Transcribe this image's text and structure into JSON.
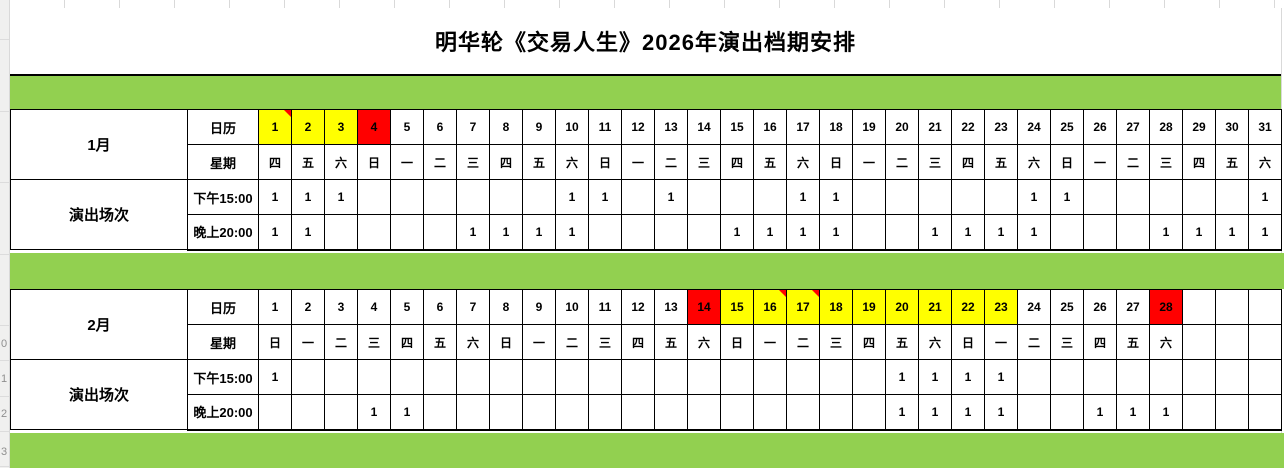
{
  "title": "明华轮《交易人生》2026年演出档期安排",
  "colors": {
    "band_green": "#92d050",
    "highlight_yellow": "#ffff00",
    "highlight_red": "#ff0000"
  },
  "labels": {
    "calendar": "日历",
    "weekday": "星期",
    "sessions": "演出场次",
    "afternoon": "下午15:00",
    "evening": "晚上20:00"
  },
  "gutter": {
    "row_numbers": [
      "0",
      "1",
      "2",
      "3"
    ]
  },
  "months": [
    {
      "name": "1月",
      "days": [
        {
          "date": "1",
          "week": "四",
          "bg": "yellow",
          "note": true,
          "pm": "1",
          "ev": "1"
        },
        {
          "date": "2",
          "week": "五",
          "bg": "yellow",
          "pm": "1",
          "ev": "1"
        },
        {
          "date": "3",
          "week": "六",
          "bg": "yellow",
          "pm": "1",
          "ev": ""
        },
        {
          "date": "4",
          "week": "日",
          "bg": "red",
          "pm": "",
          "ev": ""
        },
        {
          "date": "5",
          "week": "一",
          "pm": "",
          "ev": ""
        },
        {
          "date": "6",
          "week": "二",
          "pm": "",
          "ev": ""
        },
        {
          "date": "7",
          "week": "三",
          "pm": "",
          "ev": "1"
        },
        {
          "date": "8",
          "week": "四",
          "pm": "",
          "ev": "1"
        },
        {
          "date": "9",
          "week": "五",
          "pm": "",
          "ev": "1"
        },
        {
          "date": "10",
          "week": "六",
          "pm": "1",
          "ev": "1"
        },
        {
          "date": "11",
          "week": "日",
          "pm": "1",
          "ev": ""
        },
        {
          "date": "12",
          "week": "一",
          "pm": "",
          "ev": ""
        },
        {
          "date": "13",
          "week": "二",
          "pm": "1",
          "ev": ""
        },
        {
          "date": "14",
          "week": "三",
          "pm": "",
          "ev": ""
        },
        {
          "date": "15",
          "week": "四",
          "pm": "",
          "ev": "1"
        },
        {
          "date": "16",
          "week": "五",
          "pm": "",
          "ev": "1"
        },
        {
          "date": "17",
          "week": "六",
          "pm": "1",
          "ev": "1"
        },
        {
          "date": "18",
          "week": "日",
          "pm": "1",
          "ev": "1"
        },
        {
          "date": "19",
          "week": "一",
          "pm": "",
          "ev": ""
        },
        {
          "date": "20",
          "week": "二",
          "pm": "",
          "ev": ""
        },
        {
          "date": "21",
          "week": "三",
          "pm": "",
          "ev": "1"
        },
        {
          "date": "22",
          "week": "四",
          "pm": "",
          "ev": "1"
        },
        {
          "date": "23",
          "week": "五",
          "pm": "",
          "ev": "1"
        },
        {
          "date": "24",
          "week": "六",
          "pm": "1",
          "ev": "1"
        },
        {
          "date": "25",
          "week": "日",
          "pm": "1",
          "ev": ""
        },
        {
          "date": "26",
          "week": "一",
          "pm": "",
          "ev": ""
        },
        {
          "date": "27",
          "week": "二",
          "pm": "",
          "ev": ""
        },
        {
          "date": "28",
          "week": "三",
          "pm": "",
          "ev": "1"
        },
        {
          "date": "29",
          "week": "四",
          "pm": "",
          "ev": "1"
        },
        {
          "date": "30",
          "week": "五",
          "pm": "",
          "ev": "1"
        },
        {
          "date": "31",
          "week": "六",
          "pm": "1",
          "ev": "1"
        }
      ]
    },
    {
      "name": "2月",
      "days": [
        {
          "date": "1",
          "week": "日",
          "pm": "1",
          "ev": ""
        },
        {
          "date": "2",
          "week": "一",
          "pm": "",
          "ev": ""
        },
        {
          "date": "3",
          "week": "二",
          "pm": "",
          "ev": ""
        },
        {
          "date": "4",
          "week": "三",
          "pm": "",
          "ev": "1"
        },
        {
          "date": "5",
          "week": "四",
          "pm": "",
          "ev": "1"
        },
        {
          "date": "6",
          "week": "五",
          "pm": "",
          "ev": ""
        },
        {
          "date": "7",
          "week": "六",
          "pm": "",
          "ev": ""
        },
        {
          "date": "8",
          "week": "日",
          "pm": "",
          "ev": ""
        },
        {
          "date": "9",
          "week": "一",
          "pm": "",
          "ev": ""
        },
        {
          "date": "10",
          "week": "二",
          "pm": "",
          "ev": ""
        },
        {
          "date": "11",
          "week": "三",
          "pm": "",
          "ev": ""
        },
        {
          "date": "12",
          "week": "四",
          "pm": "",
          "ev": ""
        },
        {
          "date": "13",
          "week": "五",
          "pm": "",
          "ev": ""
        },
        {
          "date": "14",
          "week": "六",
          "bg": "red",
          "pm": "",
          "ev": ""
        },
        {
          "date": "15",
          "week": "日",
          "bg": "yellow",
          "pm": "",
          "ev": ""
        },
        {
          "date": "16",
          "week": "一",
          "bg": "yellow",
          "note": true,
          "pm": "",
          "ev": ""
        },
        {
          "date": "17",
          "week": "二",
          "bg": "yellow",
          "note": true,
          "pm": "",
          "ev": ""
        },
        {
          "date": "18",
          "week": "三",
          "bg": "yellow",
          "pm": "",
          "ev": ""
        },
        {
          "date": "19",
          "week": "四",
          "bg": "yellow",
          "pm": "",
          "ev": ""
        },
        {
          "date": "20",
          "week": "五",
          "bg": "yellow",
          "pm": "1",
          "ev": "1"
        },
        {
          "date": "21",
          "week": "六",
          "bg": "yellow",
          "pm": "1",
          "ev": "1"
        },
        {
          "date": "22",
          "week": "日",
          "bg": "yellow",
          "pm": "1",
          "ev": "1"
        },
        {
          "date": "23",
          "week": "一",
          "bg": "yellow",
          "pm": "1",
          "ev": "1"
        },
        {
          "date": "24",
          "week": "二",
          "pm": "",
          "ev": ""
        },
        {
          "date": "25",
          "week": "三",
          "pm": "",
          "ev": ""
        },
        {
          "date": "26",
          "week": "四",
          "pm": "",
          "ev": "1"
        },
        {
          "date": "27",
          "week": "五",
          "pm": "",
          "ev": "1"
        },
        {
          "date": "28",
          "week": "六",
          "bg": "red",
          "pm": "",
          "ev": "1"
        },
        {
          "date": "",
          "week": "",
          "pm": "",
          "ev": ""
        },
        {
          "date": "",
          "week": "",
          "pm": "",
          "ev": ""
        },
        {
          "date": "",
          "week": "",
          "pm": "",
          "ev": ""
        }
      ]
    }
  ]
}
